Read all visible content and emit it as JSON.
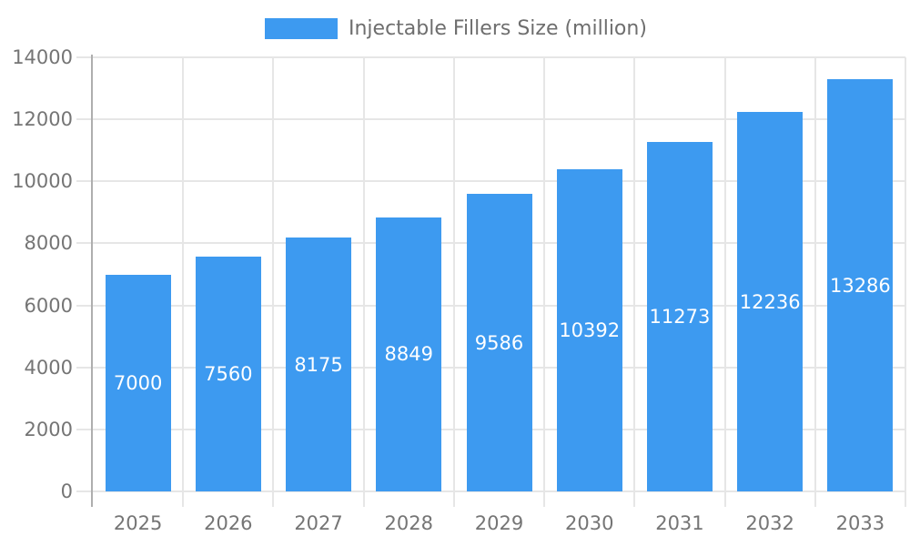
{
  "legend": {
    "label": "Injectable Fillers Size (million)"
  },
  "colors": {
    "bar": "#3D9AF0",
    "grid": "#E6E6E6",
    "axis_line": "#AEAEAE",
    "axis_label": "#757575",
    "legend_text": "#6E6E6E",
    "bar_label": "#FFFFFF",
    "background": "#FFFFFF"
  },
  "chart_data": {
    "type": "bar",
    "title": "Injectable Fillers Size (million)",
    "categories": [
      "2025",
      "2026",
      "2027",
      "2028",
      "2029",
      "2030",
      "2031",
      "2032",
      "2033"
    ],
    "values": [
      7000,
      7560,
      8175,
      8849,
      9586,
      10392,
      11273,
      12236,
      13286
    ],
    "series": [
      {
        "name": "Injectable Fillers Size (million)",
        "values": [
          7000,
          7560,
          8175,
          8849,
          9586,
          10392,
          11273,
          12236,
          13286
        ]
      }
    ],
    "xlabel": "",
    "ylabel": "",
    "ylim": [
      0,
      14000
    ],
    "yticks": [
      0,
      2000,
      4000,
      6000,
      8000,
      10000,
      12000,
      14000
    ],
    "grid": true,
    "legend_position": "top-center",
    "value_labels": "inside-middle",
    "bar_color": "#3D9AF0"
  }
}
